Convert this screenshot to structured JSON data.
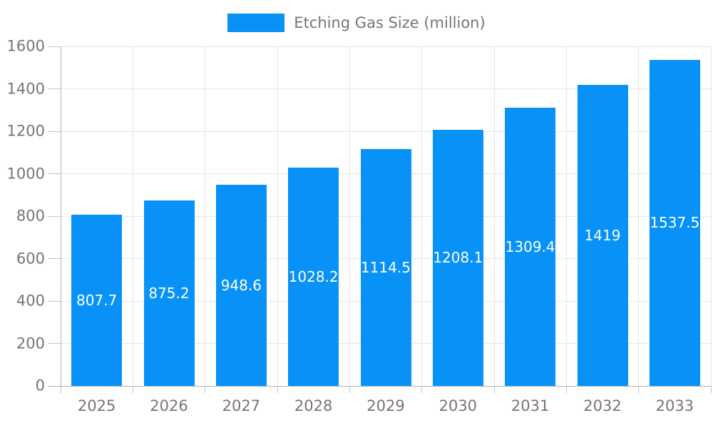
{
  "chart_data": {
    "type": "bar",
    "title": "Etching Gas Size (million)",
    "legend_label": "Etching Gas Size (million)",
    "legend_position": "top-center",
    "categories": [
      "2025",
      "2026",
      "2027",
      "2028",
      "2029",
      "2030",
      "2031",
      "2032",
      "2033"
    ],
    "series": [
      {
        "name": "Etching Gas Size (million)",
        "values": [
          807.7,
          875.2,
          948.6,
          1028.2,
          1114.5,
          1208.1,
          1309.4,
          1419,
          1537.5
        ]
      }
    ],
    "values": [
      807.7,
      875.2,
      948.6,
      1028.2,
      1114.5,
      1208.1,
      1309.4,
      1419,
      1537.5
    ],
    "value_labels": [
      "807.7",
      "875.2",
      "948.6",
      "1028.2",
      "1114.5",
      "1208.1",
      "1309.4",
      "1419",
      "1537.5"
    ],
    "xlabel": "",
    "ylabel": "",
    "ylim": [
      0,
      1600
    ],
    "yticks": [
      0,
      200,
      400,
      600,
      800,
      1000,
      1200,
      1400,
      1600
    ],
    "grid": true,
    "style": {
      "bar_color": "#0892f7",
      "value_label_color": "#ffffff",
      "axis_text_color": "#757575",
      "grid_color": "#e6e6e6",
      "axis_line_color": "#b2b2b2",
      "tick_color": "#c4c4c4",
      "background": "#ffffff"
    }
  }
}
